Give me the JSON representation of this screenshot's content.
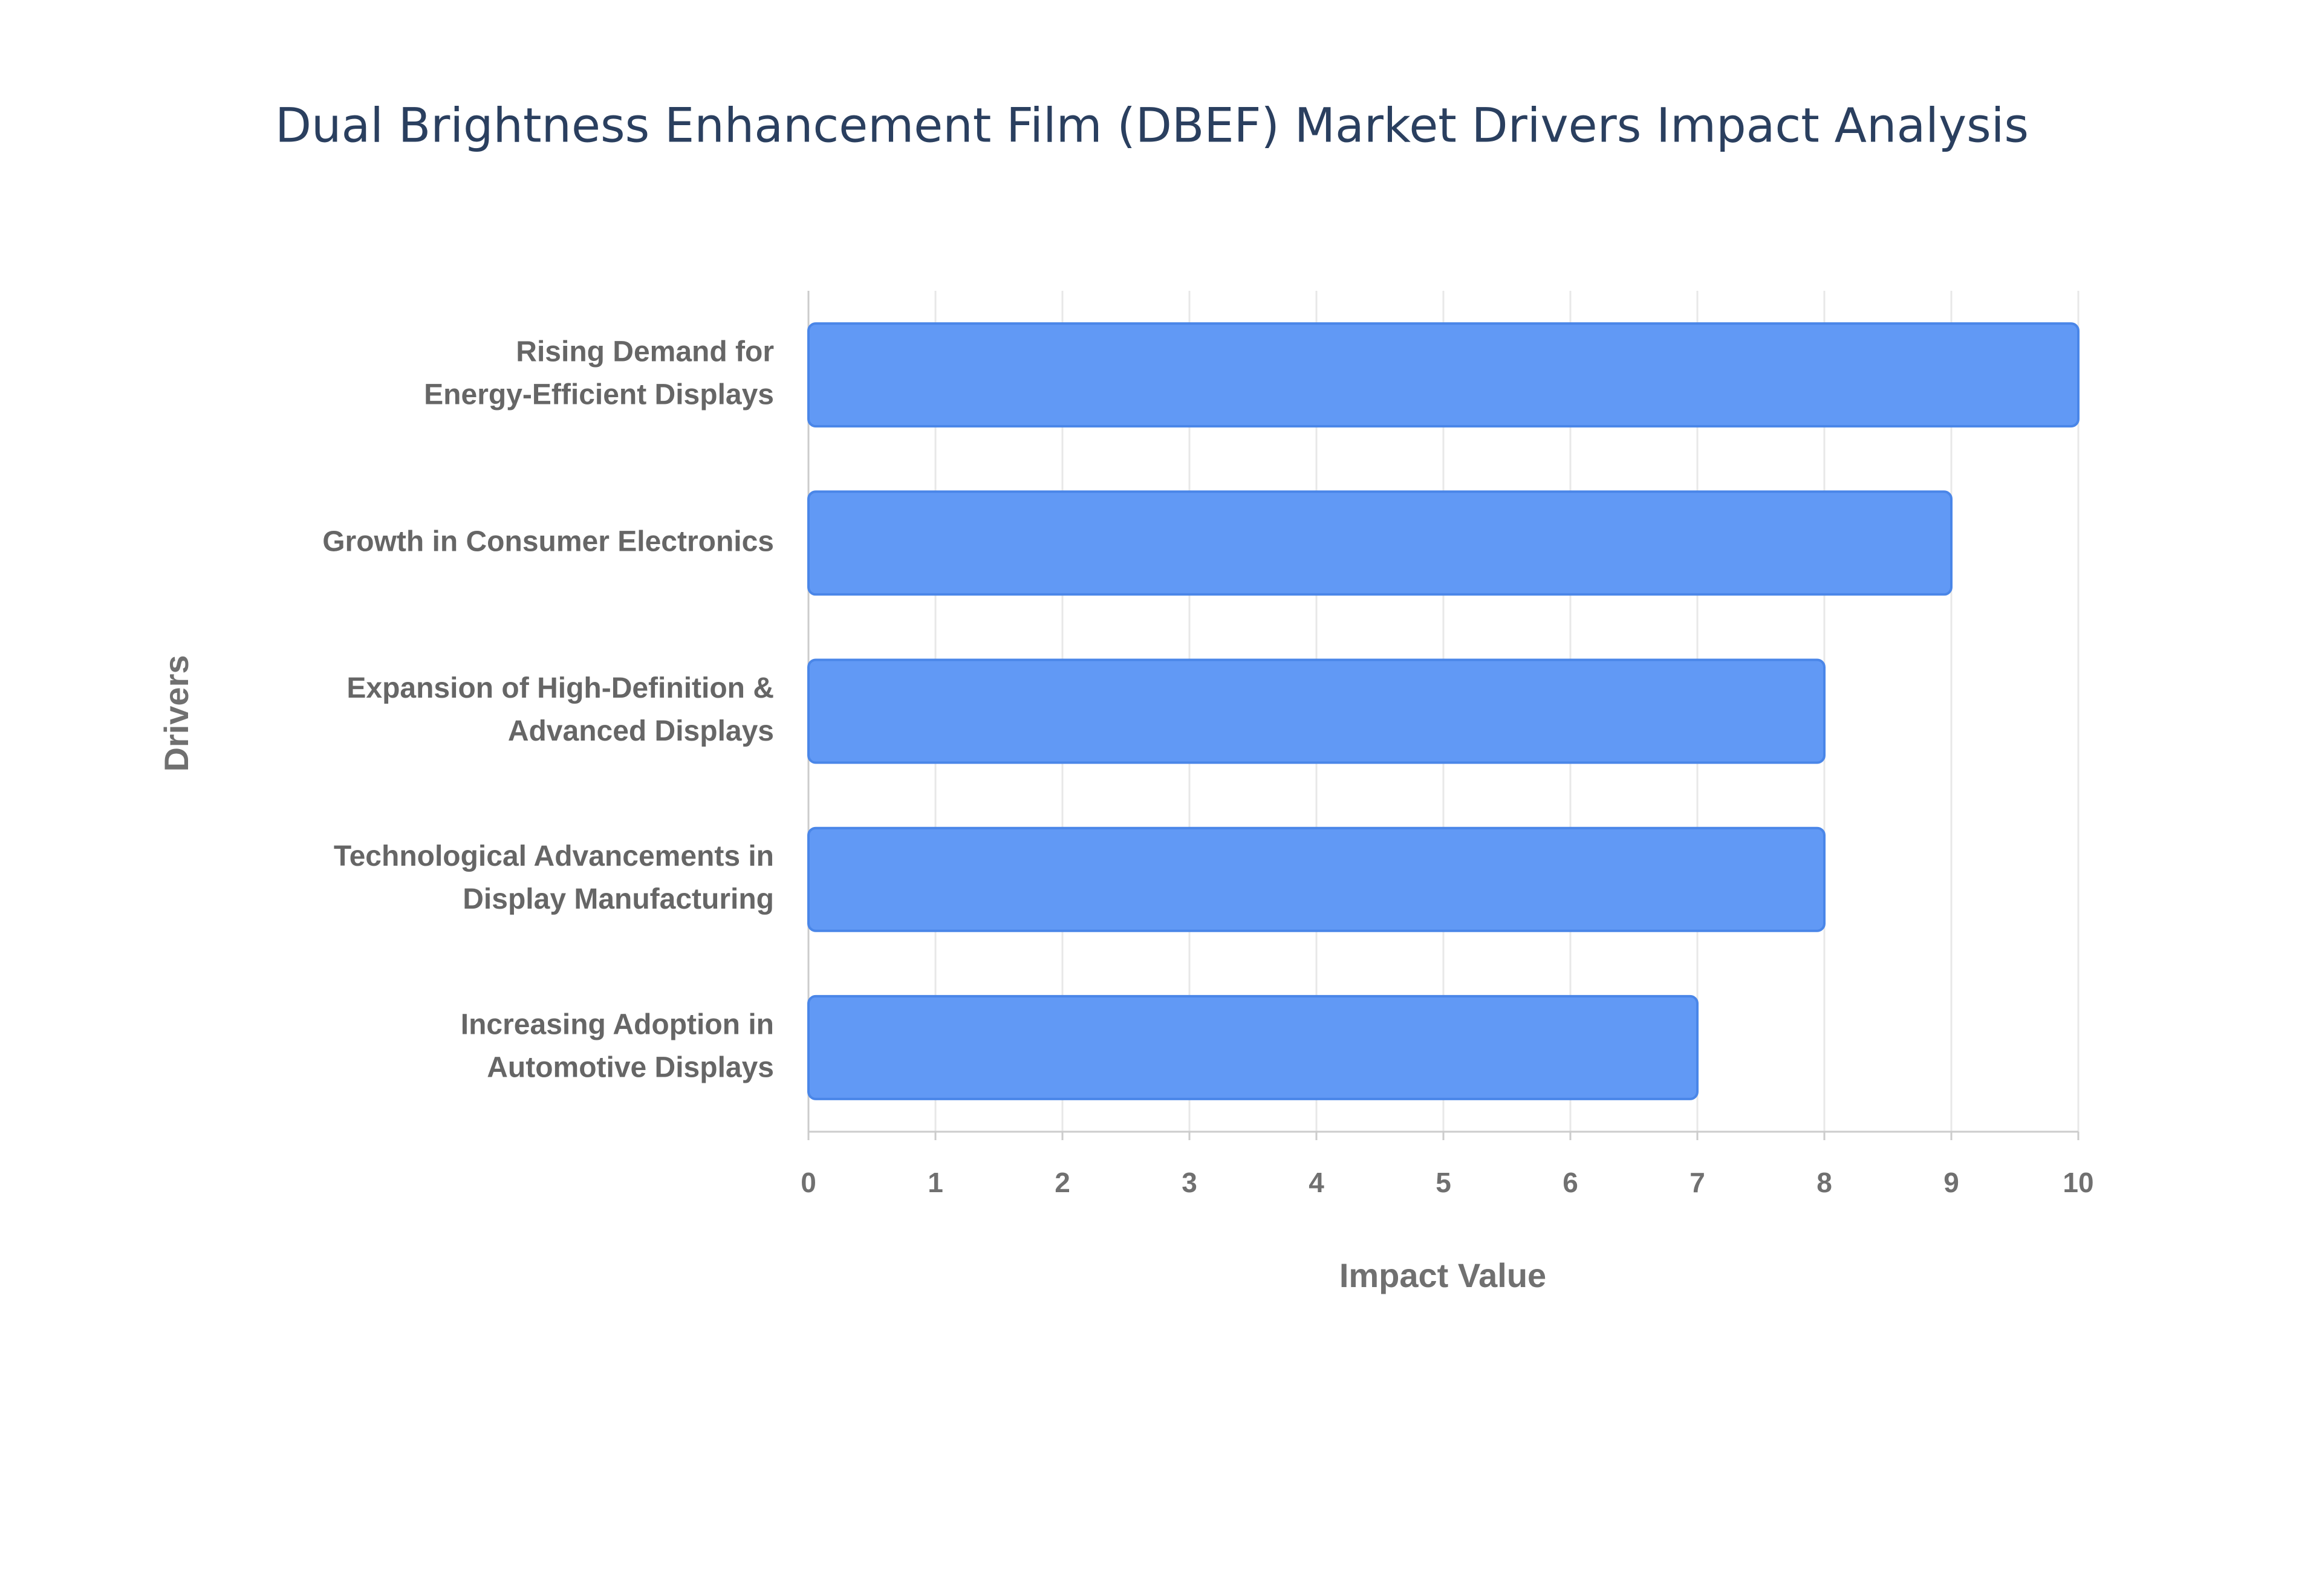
{
  "chart_data": {
    "type": "bar",
    "orientation": "horizontal",
    "title": "Dual Brightness Enhancement Film (DBEF) Market Drivers Impact Analysis",
    "categories": [
      [
        "Rising Demand for",
        "Energy-Efficient Displays"
      ],
      [
        "Growth in Consumer Electronics"
      ],
      [
        "Expansion of High-Definition &",
        "Advanced Displays"
      ],
      [
        "Technological Advancements in",
        "Display Manufacturing"
      ],
      [
        "Increasing Adoption in",
        "Automotive Displays"
      ]
    ],
    "values": [
      10,
      9,
      8,
      8,
      7
    ],
    "color": "#6199f5",
    "x_label": "Impact Value",
    "y_label": "Drivers",
    "xlim": [
      0,
      10
    ],
    "xticks": [
      0,
      1,
      2,
      3,
      4,
      5,
      6,
      7,
      8,
      9,
      10
    ],
    "grid": true
  }
}
